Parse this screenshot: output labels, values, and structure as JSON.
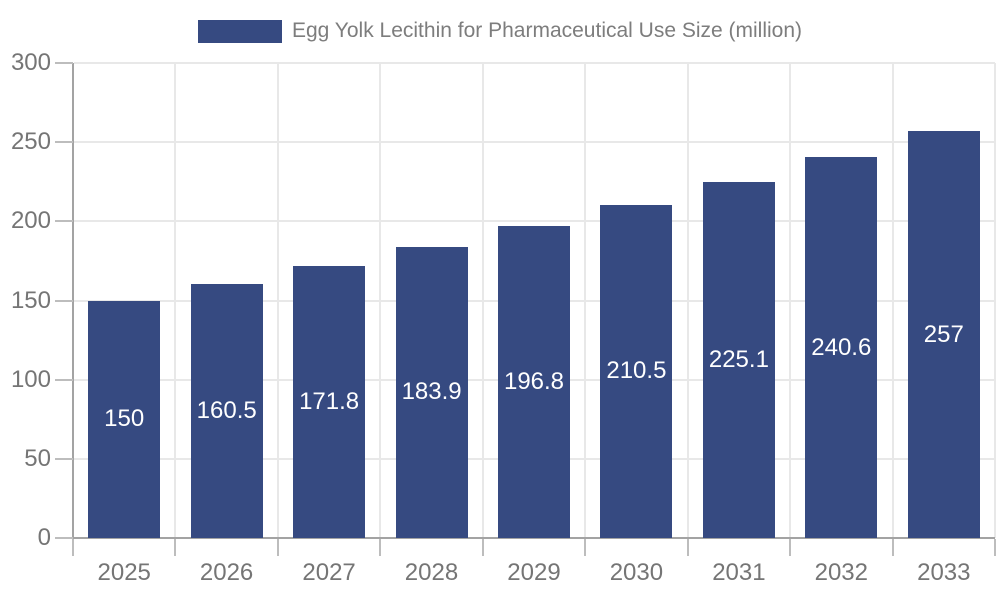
{
  "legend": {
    "series_label": "Egg Yolk Lecithin for Pharmaceutical Use Size (million)"
  },
  "colors": {
    "bar": "#364a81",
    "grid": "#e8e8e8",
    "axis": "#a3a3a3",
    "tick": "#bdbdbd",
    "axis_label": "#757575",
    "title": "#7d7d7d",
    "value_label": "#ffffff",
    "background": "#ffffff"
  },
  "chart_data": {
    "type": "bar",
    "title": "Egg Yolk Lecithin for Pharmaceutical Use Size (million)",
    "categories": [
      "2025",
      "2026",
      "2027",
      "2028",
      "2029",
      "2030",
      "2031",
      "2032",
      "2033"
    ],
    "values": [
      150,
      160.5,
      171.8,
      183.9,
      196.8,
      210.5,
      225.1,
      240.6,
      257
    ],
    "xlabel": "",
    "ylabel": "",
    "y_ticks": [
      0,
      50,
      100,
      150,
      200,
      250,
      300
    ],
    "ylim": [
      0,
      300
    ],
    "grid": true,
    "legend_position": "top",
    "value_label_position": "inside-center"
  }
}
